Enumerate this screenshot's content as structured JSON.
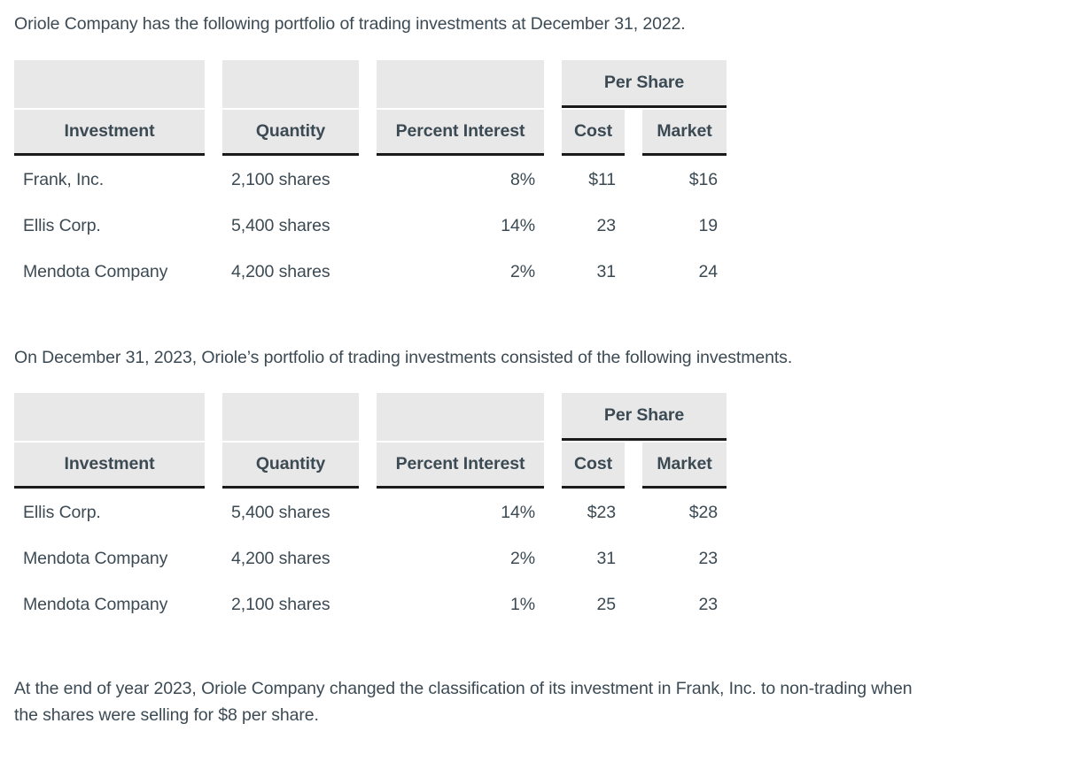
{
  "intro_2022": "Oriole Company has the following portfolio of trading investments at December 31, 2022.",
  "intro_2023": "On December 31, 2023, Oriole’s portfolio of trading investments consisted of the following investments.",
  "footer_note": "At the end of year 2023, Oriole Company changed the classification of its investment in Frank, Inc. to non-trading when\nthe shares were selling for $8 per share.",
  "columns": {
    "investment": "Investment",
    "quantity": "Quantity",
    "percent_interest": "Percent Interest",
    "per_share": "Per Share",
    "cost": "Cost",
    "market": "Market"
  },
  "table_2022": {
    "rows": [
      {
        "investment": "Frank, Inc.",
        "quantity": "2,100 shares",
        "percent": "8%",
        "cost": "$11",
        "market": "$16"
      },
      {
        "investment": "Ellis Corp.",
        "quantity": "5,400 shares",
        "percent": "14%",
        "cost": "23",
        "market": "19"
      },
      {
        "investment": "Mendota Company",
        "quantity": "4,200 shares",
        "percent": "2%",
        "cost": "31",
        "market": "24"
      }
    ]
  },
  "table_2023": {
    "rows": [
      {
        "investment": "Ellis Corp.",
        "quantity": "5,400 shares",
        "percent": "14%",
        "cost": "$23",
        "market": "$28"
      },
      {
        "investment": "Mendota Company",
        "quantity": "4,200 shares",
        "percent": "2%",
        "cost": "31",
        "market": "23"
      },
      {
        "investment": "Mendota Company",
        "quantity": "2,100 shares",
        "percent": "1%",
        "cost": "25",
        "market": "23"
      }
    ]
  },
  "colors": {
    "text": "#3c4a54",
    "header_bg": "#e8e8e8",
    "rule": "#1a1a1a",
    "page_bg": "#ffffff"
  }
}
